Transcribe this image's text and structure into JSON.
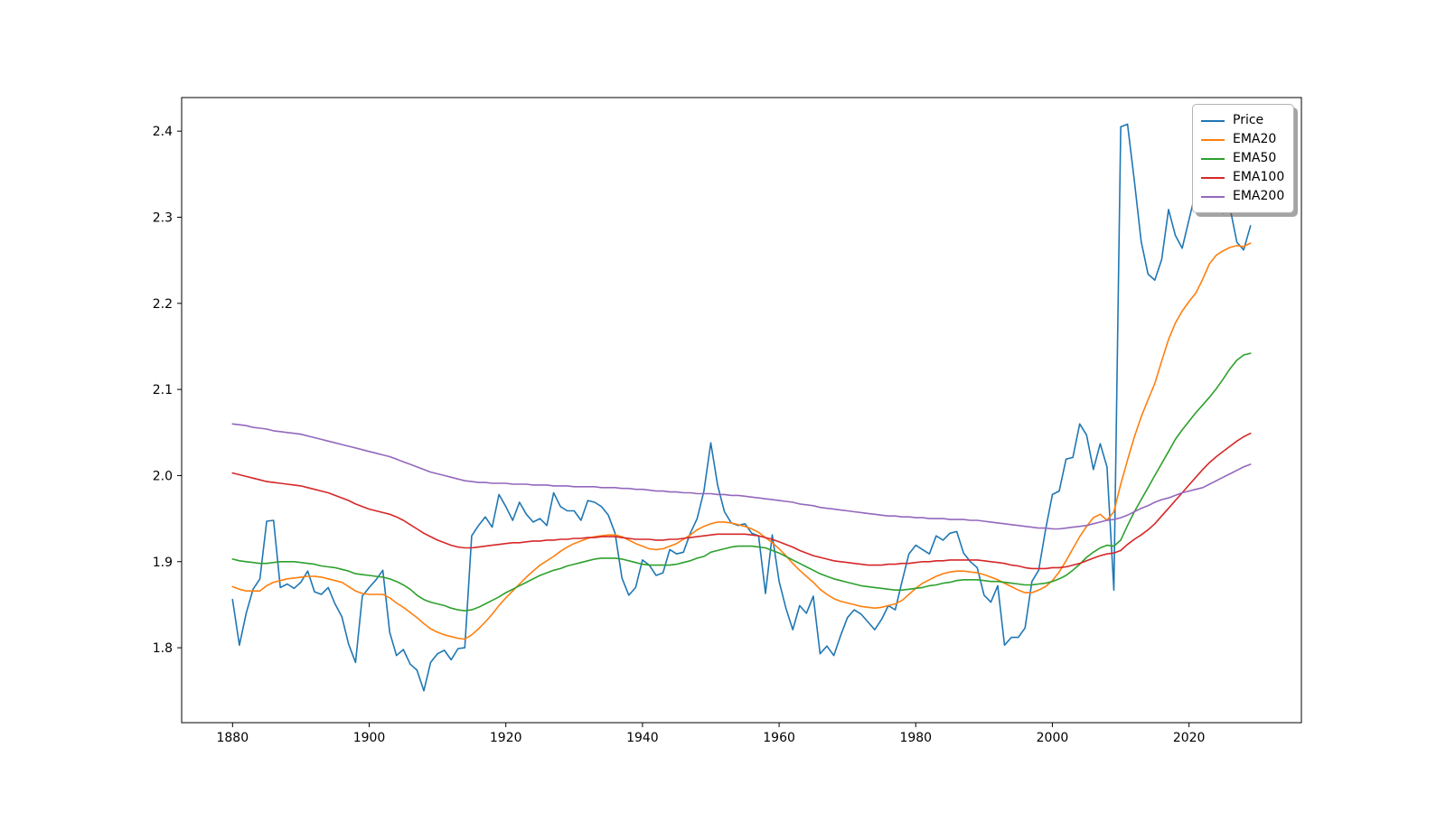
{
  "figure": {
    "background": "#ffffff"
  },
  "chart_data": {
    "type": "line",
    "title": "",
    "xlabel": "",
    "ylabel": "",
    "grid": false,
    "x_start": 1880,
    "x_step": 1,
    "x_end": 2029,
    "xlim": [
      1872.55,
      2036.45
    ],
    "ylim": [
      1.713,
      2.439
    ],
    "xticks": [
      1880,
      1900,
      1920,
      1940,
      1960,
      1980,
      2000,
      2020
    ],
    "yticks": [
      1.8,
      1.9,
      2.0,
      2.1,
      2.2,
      2.3,
      2.4
    ],
    "legend": {
      "position": "upper right",
      "entries": [
        "Price",
        "EMA20",
        "EMA50",
        "EMA100",
        "EMA200"
      ]
    },
    "series": [
      {
        "name": "Price",
        "color": "#1f77b4",
        "values": [
          1.856,
          1.803,
          1.84,
          1.868,
          1.88,
          1.947,
          1.948,
          1.87,
          1.874,
          1.869,
          1.876,
          1.889,
          1.865,
          1.862,
          1.87,
          1.851,
          1.836,
          1.804,
          1.783,
          1.86,
          1.87,
          1.879,
          1.89,
          1.818,
          1.791,
          1.798,
          1.781,
          1.774,
          1.75,
          1.783,
          1.793,
          1.797,
          1.786,
          1.799,
          1.8,
          1.93,
          1.942,
          1.952,
          1.94,
          1.978,
          1.964,
          1.948,
          1.969,
          1.955,
          1.946,
          1.95,
          1.942,
          1.98,
          1.964,
          1.959,
          1.959,
          1.948,
          1.971,
          1.969,
          1.964,
          1.954,
          1.933,
          1.881,
          1.861,
          1.87,
          1.902,
          1.896,
          1.884,
          1.887,
          1.914,
          1.909,
          1.911,
          1.933,
          1.95,
          1.982,
          2.038,
          1.989,
          1.958,
          1.945,
          1.942,
          1.944,
          1.933,
          1.93,
          1.863,
          1.931,
          1.877,
          1.846,
          1.821,
          1.849,
          1.84,
          1.86,
          1.793,
          1.802,
          1.791,
          1.814,
          1.835,
          1.844,
          1.839,
          1.83,
          1.821,
          1.833,
          1.849,
          1.844,
          1.877,
          1.909,
          1.919,
          1.914,
          1.909,
          1.93,
          1.925,
          1.933,
          1.935,
          1.91,
          1.9,
          1.893,
          1.861,
          1.853,
          1.872,
          1.803,
          1.812,
          1.812,
          1.823,
          1.877,
          1.89,
          1.937,
          1.978,
          1.982,
          2.019,
          2.021,
          2.06,
          2.047,
          2.007,
          2.037,
          2.01,
          1.867,
          2.405,
          2.408,
          2.342,
          2.272,
          2.234,
          2.227,
          2.251,
          2.309,
          2.279,
          2.264,
          2.297,
          2.33,
          2.31,
          2.335,
          2.32,
          2.305,
          2.311,
          2.271,
          2.262,
          2.29
        ]
      },
      {
        "name": "EMA20",
        "color": "#ff7f0e",
        "span": 20,
        "values": [
          1.871,
          1.868,
          1.866,
          1.866,
          1.866,
          1.872,
          1.876,
          1.878,
          1.88,
          1.881,
          1.882,
          1.883,
          1.883,
          1.882,
          1.88,
          1.878,
          1.876,
          1.871,
          1.866,
          1.863,
          1.862,
          1.862,
          1.862,
          1.858,
          1.852,
          1.847,
          1.841,
          1.835,
          1.828,
          1.822,
          1.818,
          1.815,
          1.813,
          1.811,
          1.81,
          1.815,
          1.822,
          1.83,
          1.839,
          1.849,
          1.858,
          1.866,
          1.874,
          1.882,
          1.889,
          1.896,
          1.901,
          1.906,
          1.912,
          1.917,
          1.921,
          1.924,
          1.927,
          1.929,
          1.93,
          1.931,
          1.931,
          1.929,
          1.925,
          1.921,
          1.918,
          1.915,
          1.914,
          1.915,
          1.918,
          1.921,
          1.926,
          1.931,
          1.937,
          1.941,
          1.944,
          1.946,
          1.946,
          1.945,
          1.943,
          1.941,
          1.938,
          1.934,
          1.928,
          1.922,
          1.915,
          1.907,
          1.898,
          1.89,
          1.883,
          1.876,
          1.868,
          1.862,
          1.857,
          1.854,
          1.852,
          1.85,
          1.848,
          1.847,
          1.846,
          1.847,
          1.849,
          1.851,
          1.855,
          1.862,
          1.869,
          1.875,
          1.879,
          1.883,
          1.886,
          1.888,
          1.889,
          1.889,
          1.888,
          1.887,
          1.885,
          1.882,
          1.879,
          1.875,
          1.871,
          1.867,
          1.864,
          1.864,
          1.867,
          1.871,
          1.878,
          1.888,
          1.901,
          1.915,
          1.929,
          1.941,
          1.951,
          1.955,
          1.948,
          1.958,
          1.99,
          2.018,
          2.045,
          2.068,
          2.088,
          2.107,
          2.133,
          2.158,
          2.177,
          2.191,
          2.202,
          2.212,
          2.228,
          2.246,
          2.256,
          2.261,
          2.265,
          2.267,
          2.266,
          2.27
        ]
      },
      {
        "name": "EMA50",
        "color": "#2ca02c",
        "span": 50,
        "values": [
          1.903,
          1.901,
          1.9,
          1.899,
          1.898,
          1.898,
          1.899,
          1.9,
          1.9,
          1.9,
          1.899,
          1.898,
          1.897,
          1.895,
          1.894,
          1.893,
          1.891,
          1.889,
          1.886,
          1.885,
          1.884,
          1.883,
          1.882,
          1.88,
          1.877,
          1.873,
          1.868,
          1.861,
          1.856,
          1.853,
          1.851,
          1.849,
          1.846,
          1.844,
          1.843,
          1.844,
          1.847,
          1.851,
          1.855,
          1.859,
          1.864,
          1.868,
          1.872,
          1.876,
          1.88,
          1.884,
          1.887,
          1.89,
          1.892,
          1.895,
          1.897,
          1.899,
          1.901,
          1.903,
          1.904,
          1.904,
          1.904,
          1.903,
          1.901,
          1.899,
          1.897,
          1.896,
          1.896,
          1.896,
          1.896,
          1.897,
          1.899,
          1.901,
          1.904,
          1.906,
          1.911,
          1.913,
          1.915,
          1.917,
          1.918,
          1.918,
          1.918,
          1.917,
          1.916,
          1.913,
          1.91,
          1.906,
          1.902,
          1.898,
          1.894,
          1.89,
          1.886,
          1.883,
          1.88,
          1.878,
          1.876,
          1.874,
          1.872,
          1.871,
          1.87,
          1.869,
          1.868,
          1.867,
          1.867,
          1.868,
          1.869,
          1.87,
          1.872,
          1.873,
          1.875,
          1.876,
          1.878,
          1.879,
          1.879,
          1.879,
          1.878,
          1.877,
          1.877,
          1.876,
          1.875,
          1.874,
          1.873,
          1.873,
          1.874,
          1.875,
          1.877,
          1.88,
          1.884,
          1.89,
          1.897,
          1.905,
          1.911,
          1.916,
          1.919,
          1.918,
          1.925,
          1.942,
          1.958,
          1.972,
          1.986,
          2.0,
          2.014,
          2.028,
          2.042,
          2.053,
          2.063,
          2.073,
          2.082,
          2.091,
          2.101,
          2.112,
          2.124,
          2.134,
          2.14,
          2.142
        ]
      },
      {
        "name": "EMA100",
        "color": "#d62728",
        "span": 100,
        "values": [
          2.003,
          2.001,
          1.999,
          1.997,
          1.995,
          1.993,
          1.992,
          1.991,
          1.99,
          1.989,
          1.988,
          1.986,
          1.984,
          1.982,
          1.98,
          1.977,
          1.974,
          1.971,
          1.967,
          1.964,
          1.961,
          1.959,
          1.957,
          1.955,
          1.952,
          1.948,
          1.943,
          1.938,
          1.933,
          1.929,
          1.925,
          1.922,
          1.919,
          1.917,
          1.916,
          1.916,
          1.917,
          1.918,
          1.919,
          1.92,
          1.921,
          1.922,
          1.922,
          1.923,
          1.924,
          1.924,
          1.925,
          1.925,
          1.926,
          1.926,
          1.927,
          1.927,
          1.928,
          1.928,
          1.929,
          1.929,
          1.929,
          1.928,
          1.927,
          1.926,
          1.926,
          1.926,
          1.925,
          1.925,
          1.926,
          1.926,
          1.927,
          1.928,
          1.929,
          1.93,
          1.931,
          1.932,
          1.932,
          1.932,
          1.932,
          1.932,
          1.931,
          1.93,
          1.928,
          1.926,
          1.923,
          1.92,
          1.917,
          1.913,
          1.91,
          1.907,
          1.905,
          1.903,
          1.901,
          1.9,
          1.899,
          1.898,
          1.897,
          1.896,
          1.896,
          1.896,
          1.897,
          1.897,
          1.898,
          1.898,
          1.899,
          1.9,
          1.9,
          1.901,
          1.901,
          1.902,
          1.902,
          1.902,
          1.902,
          1.902,
          1.901,
          1.9,
          1.899,
          1.898,
          1.896,
          1.895,
          1.893,
          1.892,
          1.892,
          1.892,
          1.893,
          1.893,
          1.894,
          1.896,
          1.898,
          1.901,
          1.904,
          1.907,
          1.909,
          1.91,
          1.913,
          1.92,
          1.926,
          1.931,
          1.937,
          1.944,
          1.953,
          1.962,
          1.971,
          1.98,
          1.989,
          1.998,
          2.007,
          2.015,
          2.022,
          2.028,
          2.034,
          2.04,
          2.045,
          2.049
        ]
      },
      {
        "name": "EMA200",
        "color": "#9467bd",
        "span": 200,
        "values": [
          2.06,
          2.059,
          2.058,
          2.056,
          2.055,
          2.054,
          2.052,
          2.051,
          2.05,
          2.049,
          2.048,
          2.046,
          2.044,
          2.042,
          2.04,
          2.038,
          2.036,
          2.034,
          2.032,
          2.03,
          2.028,
          2.026,
          2.024,
          2.022,
          2.019,
          2.016,
          2.013,
          2.01,
          2.007,
          2.004,
          2.002,
          2.0,
          1.998,
          1.996,
          1.994,
          1.993,
          1.992,
          1.992,
          1.991,
          1.991,
          1.991,
          1.99,
          1.99,
          1.99,
          1.989,
          1.989,
          1.989,
          1.988,
          1.988,
          1.988,
          1.987,
          1.987,
          1.987,
          1.987,
          1.986,
          1.986,
          1.986,
          1.985,
          1.985,
          1.984,
          1.984,
          1.983,
          1.982,
          1.982,
          1.981,
          1.981,
          1.98,
          1.98,
          1.979,
          1.979,
          1.979,
          1.978,
          1.978,
          1.977,
          1.977,
          1.976,
          1.975,
          1.974,
          1.973,
          1.972,
          1.971,
          1.97,
          1.969,
          1.967,
          1.966,
          1.965,
          1.963,
          1.962,
          1.961,
          1.96,
          1.959,
          1.958,
          1.957,
          1.956,
          1.955,
          1.954,
          1.953,
          1.953,
          1.952,
          1.952,
          1.951,
          1.951,
          1.95,
          1.95,
          1.95,
          1.949,
          1.949,
          1.949,
          1.948,
          1.948,
          1.947,
          1.946,
          1.945,
          1.944,
          1.943,
          1.942,
          1.941,
          1.94,
          1.939,
          1.939,
          1.938,
          1.938,
          1.939,
          1.94,
          1.941,
          1.942,
          1.944,
          1.946,
          1.948,
          1.949,
          1.951,
          1.954,
          1.958,
          1.962,
          1.965,
          1.969,
          1.972,
          1.974,
          1.977,
          1.98,
          1.982,
          1.984,
          1.986,
          1.99,
          1.994,
          1.998,
          2.002,
          2.006,
          2.01,
          2.013
        ]
      }
    ]
  }
}
